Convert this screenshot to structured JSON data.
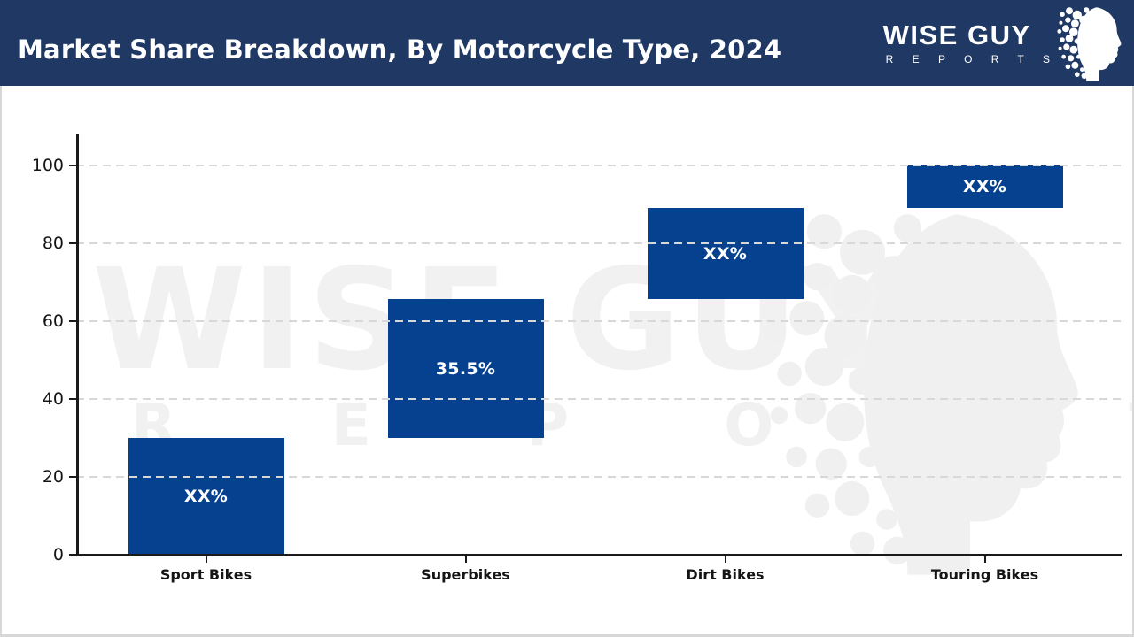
{
  "header": {
    "title": "Market Share Breakdown, By Motorcycle Type, 2024",
    "brand": {
      "line1": "WISE GUY",
      "line2": "R E P O R T S"
    }
  },
  "watermark": {
    "line1": "WISE GUY",
    "line2": "R E P O R T S"
  },
  "colors": {
    "header_bg": "#203864",
    "bar": "#05418f",
    "bar_label": "#ffffff",
    "gridline": "#d8d8d8",
    "axis": "#1a1a1a",
    "watermark": "#f1f1f2"
  },
  "chart_data": {
    "type": "bar",
    "subtype": "waterfall",
    "title": "Market Share Breakdown, By Motorcycle Type, 2024",
    "xlabel": "",
    "ylabel": "",
    "categories": [
      "Sport Bikes",
      "Superbikes",
      "Dirt Bikes",
      "Touring Bikes"
    ],
    "segments": [
      {
        "category": "Sport Bikes",
        "start": 0,
        "end": 30,
        "value": 30,
        "label": "XX%"
      },
      {
        "category": "Superbikes",
        "start": 30,
        "end": 65.5,
        "value": 35.5,
        "label": "35.5%"
      },
      {
        "category": "Dirt Bikes",
        "start": 65.5,
        "end": 89,
        "value": 23.5,
        "label": "XX%"
      },
      {
        "category": "Touring Bikes",
        "start": 89,
        "end": 100,
        "value": 11,
        "label": "XX%"
      }
    ],
    "yticks": [
      0,
      20,
      40,
      60,
      80,
      100
    ],
    "ylim": [
      0,
      108
    ],
    "grid": "dashed-horizontal",
    "legend": "none",
    "bar_color": "#05418f",
    "label_color": "#ffffff"
  }
}
